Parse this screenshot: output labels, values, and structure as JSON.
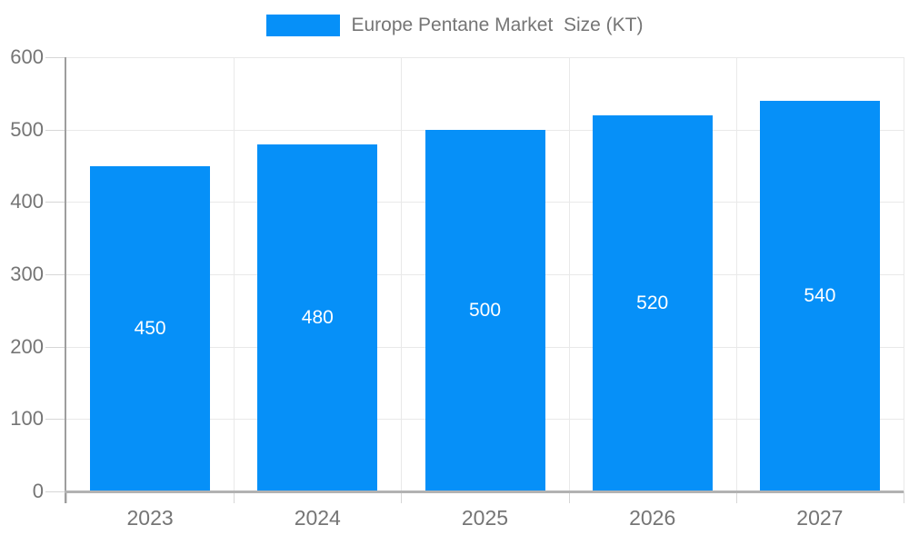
{
  "legend": {
    "label": "Europe Pentane Market  Size (KT)"
  },
  "chart_data": {
    "type": "bar",
    "title": "",
    "categories": [
      "2023",
      "2024",
      "2025",
      "2026",
      "2027"
    ],
    "series": [
      {
        "name": "Europe Pentane Market  Size (KT)",
        "values": [
          450,
          480,
          500,
          520,
          540
        ],
        "color": "#0690F8"
      }
    ],
    "xlabel": "",
    "ylabel": "",
    "ylim": [
      0,
      600
    ],
    "yticks": [
      0,
      100,
      200,
      300,
      400,
      500,
      600
    ],
    "grid": true,
    "legend_position": "top-center",
    "value_labels": {
      "show": true,
      "color": "#FFFFFF",
      "position": "middle-of-bar"
    }
  },
  "colors": {
    "bar": "#0690F8",
    "axis_label": "#757575",
    "grid_line": "#E9E9E9",
    "tick_mark": "#D6D6D6",
    "y_axis_line": "#9E9E9E",
    "x_axis_line": "#B2B2B2",
    "background": "#FFFFFF",
    "value_label": "#FFFFFF"
  }
}
